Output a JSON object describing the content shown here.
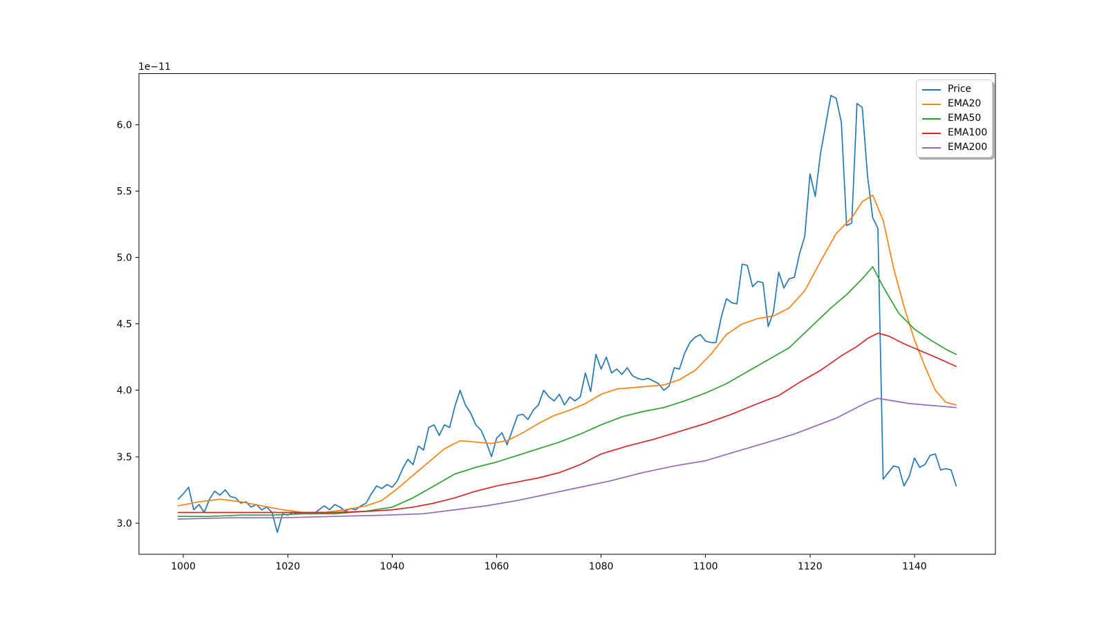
{
  "figure": {
    "background": "#ffffff"
  },
  "chart_data": {
    "type": "line",
    "title": "",
    "xlabel": "",
    "ylabel": "",
    "y_offset_text": "1e−11",
    "y_unit_multiplier": 1e-11,
    "grid": false,
    "xlim": [
      991.5,
      1155.5
    ],
    "ylim": [
      2.765,
      6.385
    ],
    "xticks": [
      1000,
      1020,
      1040,
      1060,
      1080,
      1100,
      1120,
      1140
    ],
    "yticks": [
      "3.0",
      "3.5",
      "4.0",
      "4.5",
      "5.0",
      "5.5",
      "6.0"
    ],
    "legend": {
      "position": "upper right",
      "shadow": true,
      "entries": [
        "Price",
        "EMA20",
        "EMA50",
        "EMA100",
        "EMA200"
      ]
    },
    "series": [
      {
        "name": "Price",
        "color": "#1f77b4",
        "x_start": 999,
        "x_step": 1,
        "values": [
          3.18,
          3.22,
          3.27,
          3.1,
          3.14,
          3.08,
          3.18,
          3.24,
          3.21,
          3.25,
          3.2,
          3.19,
          3.15,
          3.16,
          3.12,
          3.14,
          3.1,
          3.12,
          3.08,
          2.93,
          3.07,
          3.06,
          3.08,
          3.07,
          3.08,
          3.07,
          3.07,
          3.1,
          3.13,
          3.1,
          3.14,
          3.12,
          3.09,
          3.11,
          3.1,
          3.13,
          3.15,
          3.22,
          3.28,
          3.26,
          3.29,
          3.27,
          3.32,
          3.41,
          3.48,
          3.44,
          3.58,
          3.55,
          3.72,
          3.74,
          3.66,
          3.74,
          3.72,
          3.88,
          4.0,
          3.89,
          3.83,
          3.74,
          3.7,
          3.61,
          3.5,
          3.64,
          3.68,
          3.59,
          3.7,
          3.81,
          3.82,
          3.78,
          3.85,
          3.89,
          4.0,
          3.95,
          3.92,
          3.97,
          3.89,
          3.95,
          3.92,
          3.95,
          4.13,
          3.99,
          4.27,
          4.16,
          4.25,
          4.13,
          4.16,
          4.12,
          4.17,
          4.11,
          4.09,
          4.08,
          4.09,
          4.07,
          4.05,
          4.0,
          4.03,
          4.17,
          4.16,
          4.28,
          4.36,
          4.4,
          4.42,
          4.37,
          4.36,
          4.36,
          4.55,
          4.69,
          4.66,
          4.65,
          4.95,
          4.94,
          4.78,
          4.82,
          4.81,
          4.48,
          4.59,
          4.89,
          4.77,
          4.84,
          4.85,
          5.03,
          5.16,
          5.63,
          5.46,
          5.78,
          6.0,
          6.22,
          6.2,
          6.02,
          5.24,
          5.26,
          6.16,
          6.13,
          5.62,
          5.3,
          5.22,
          3.33,
          3.38,
          3.43,
          3.42,
          3.28,
          3.35,
          3.49,
          3.42,
          3.44,
          3.51,
          3.52,
          3.4,
          3.41,
          3.4,
          3.28
        ]
      },
      {
        "name": "EMA20",
        "color": "#ff7f0e",
        "x": [
          999,
          1003,
          1007,
          1011,
          1015,
          1019,
          1023,
          1027,
          1031,
          1035,
          1038,
          1041,
          1044,
          1047,
          1050,
          1053,
          1056,
          1059,
          1062,
          1065,
          1068,
          1071,
          1074,
          1077,
          1080,
          1083,
          1086,
          1089,
          1092,
          1095,
          1098,
          1101,
          1104,
          1107,
          1110,
          1113,
          1116,
          1119,
          1122,
          1125,
          1128,
          1130,
          1132,
          1134,
          1136,
          1138,
          1140,
          1142,
          1144,
          1146,
          1148
        ],
        "y": [
          3.13,
          3.16,
          3.18,
          3.16,
          3.13,
          3.1,
          3.08,
          3.08,
          3.1,
          3.13,
          3.17,
          3.26,
          3.36,
          3.46,
          3.56,
          3.62,
          3.61,
          3.6,
          3.62,
          3.68,
          3.75,
          3.81,
          3.85,
          3.9,
          3.97,
          4.01,
          4.02,
          4.03,
          4.04,
          4.08,
          4.15,
          4.27,
          4.42,
          4.5,
          4.54,
          4.56,
          4.62,
          4.75,
          4.97,
          5.18,
          5.3,
          5.42,
          5.47,
          5.28,
          4.92,
          4.63,
          4.38,
          4.18,
          4.0,
          3.91,
          3.89
        ]
      },
      {
        "name": "EMA50",
        "color": "#2ca02c",
        "x": [
          999,
          1005,
          1011,
          1017,
          1023,
          1029,
          1035,
          1040,
          1044,
          1048,
          1052,
          1056,
          1060,
          1064,
          1068,
          1072,
          1076,
          1080,
          1084,
          1088,
          1092,
          1096,
          1100,
          1104,
          1108,
          1112,
          1116,
          1120,
          1124,
          1127,
          1130,
          1132,
          1134,
          1137,
          1140,
          1143,
          1146,
          1148
        ],
        "y": [
          3.05,
          3.05,
          3.06,
          3.06,
          3.07,
          3.07,
          3.09,
          3.12,
          3.19,
          3.28,
          3.37,
          3.42,
          3.46,
          3.51,
          3.56,
          3.61,
          3.67,
          3.74,
          3.8,
          3.84,
          3.87,
          3.92,
          3.98,
          4.05,
          4.14,
          4.23,
          4.32,
          4.47,
          4.62,
          4.72,
          4.84,
          4.93,
          4.78,
          4.58,
          4.46,
          4.38,
          4.31,
          4.27
        ]
      },
      {
        "name": "EMA100",
        "color": "#d62728",
        "x": [
          999,
          1009,
          1019,
          1029,
          1036,
          1040,
          1044,
          1048,
          1052,
          1056,
          1060,
          1064,
          1068,
          1072,
          1076,
          1080,
          1085,
          1090,
          1095,
          1100,
          1105,
          1110,
          1114,
          1118,
          1122,
          1126,
          1129,
          1131,
          1133,
          1135,
          1138,
          1141,
          1144,
          1148
        ],
        "y": [
          3.08,
          3.08,
          3.08,
          3.08,
          3.09,
          3.1,
          3.12,
          3.15,
          3.19,
          3.24,
          3.28,
          3.31,
          3.34,
          3.38,
          3.44,
          3.52,
          3.58,
          3.63,
          3.69,
          3.75,
          3.82,
          3.9,
          3.96,
          4.06,
          4.15,
          4.26,
          4.33,
          4.39,
          4.43,
          4.41,
          4.35,
          4.3,
          4.25,
          4.18
        ]
      },
      {
        "name": "EMA200",
        "color": "#9467bd",
        "x": [
          999,
          1009,
          1019,
          1029,
          1039,
          1046,
          1052,
          1058,
          1064,
          1070,
          1076,
          1082,
          1088,
          1094,
          1100,
          1106,
          1112,
          1117,
          1121,
          1125,
          1128,
          1131,
          1133,
          1136,
          1139,
          1142,
          1145,
          1148
        ],
        "y": [
          3.03,
          3.04,
          3.04,
          3.05,
          3.06,
          3.07,
          3.1,
          3.13,
          3.17,
          3.22,
          3.27,
          3.32,
          3.38,
          3.43,
          3.47,
          3.54,
          3.61,
          3.67,
          3.73,
          3.79,
          3.85,
          3.91,
          3.94,
          3.92,
          3.9,
          3.89,
          3.88,
          3.87
        ]
      }
    ]
  }
}
